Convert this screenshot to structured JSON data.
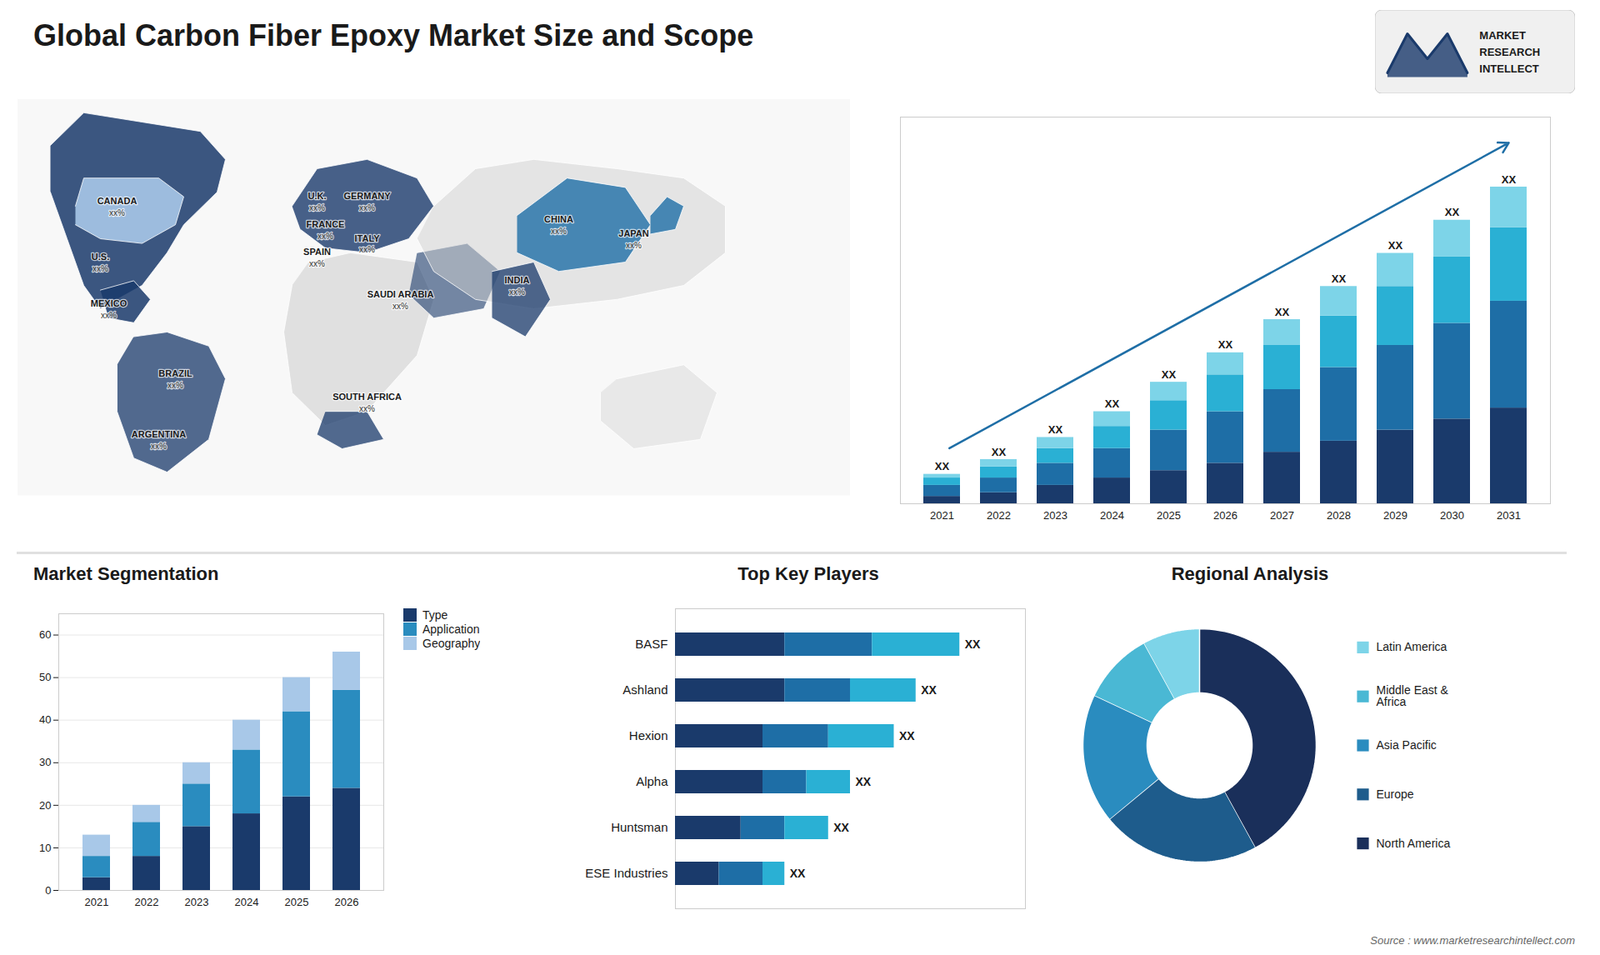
{
  "chart_data": [
    {
      "type": "map",
      "title": "Global Carbon Fiber Epoxy Market Size and Scope",
      "categories": [
        "CANADA",
        "U.S.",
        "MEXICO",
        "BRAZIL",
        "ARGENTINA",
        "U.K.",
        "FRANCE",
        "SPAIN",
        "GERMANY",
        "ITALY",
        "SAUDI ARABIA",
        "SOUTH AFRICA",
        "CHINA",
        "INDIA",
        "JAPAN"
      ],
      "value_labels": [
        "xx%",
        "xx%",
        "xx%",
        "xx%",
        "xx%",
        "xx%",
        "xx%",
        "xx%",
        "xx%",
        "xx%",
        "xx%",
        "xx%",
        "xx%",
        "xx%",
        "xx%"
      ],
      "annotations": [
        "MARKET",
        "RESEARCH",
        "INTELLECT",
        "Source : www.marketresearchintellect.com"
      ]
    },
    {
      "type": "bar",
      "stacked": true,
      "categories": [
        "2021",
        "2022",
        "2023",
        "2024",
        "2025",
        "2026",
        "2027",
        "2028",
        "2029",
        "2030",
        "2031"
      ],
      "series": [
        {
          "color": "#1a3a6b",
          "values": [
            2,
            3,
            5,
            7,
            9,
            11,
            14,
            17,
            20,
            23,
            26
          ]
        },
        {
          "color": "#1e6ea6",
          "values": [
            3,
            4,
            6,
            8,
            11,
            14,
            17,
            20,
            23,
            26,
            29
          ]
        },
        {
          "color": "#2ab0d4",
          "values": [
            2,
            3,
            4,
            6,
            8,
            10,
            12,
            14,
            16,
            18,
            20
          ]
        },
        {
          "color": "#7dd4e8",
          "values": [
            1,
            2,
            3,
            4,
            5,
            6,
            7,
            8,
            9,
            10,
            11
          ]
        }
      ],
      "value_labels": [
        "XX",
        "XX",
        "XX",
        "XX",
        "XX",
        "XX",
        "XX",
        "XX",
        "XX",
        "XX",
        "XX"
      ],
      "ylim": [
        0,
        105
      ],
      "tick_labels": "x"
    },
    {
      "type": "bar",
      "stacked": true,
      "title": "Market Segmentation",
      "categories": [
        "2021",
        "2022",
        "2023",
        "2024",
        "2025",
        "2026"
      ],
      "series": [
        {
          "name": "Type",
          "color": "#1a3a6b",
          "values": [
            3,
            8,
            15,
            18,
            22,
            24
          ]
        },
        {
          "name": "Application",
          "color": "#2a8cbf",
          "values": [
            5,
            8,
            10,
            15,
            20,
            23
          ]
        },
        {
          "name": "Geography",
          "color": "#a8c8e8",
          "values": [
            5,
            4,
            5,
            7,
            8,
            9
          ]
        }
      ],
      "ylim": [
        0,
        65
      ],
      "yticks": [
        0,
        10,
        20,
        30,
        40,
        50,
        60
      ],
      "grid": true,
      "legend": "right"
    },
    {
      "type": "bar",
      "stacked": true,
      "orientation": "horizontal",
      "title": "Top Key Players",
      "categories": [
        "BASF",
        "Ashland",
        "Hexion",
        "Alpha",
        "Huntsman",
        "ESE Industries"
      ],
      "series": [
        {
          "color": "#1a3a6b",
          "values": [
            5,
            5,
            4,
            4,
            3,
            2
          ]
        },
        {
          "color": "#1e6ea6",
          "values": [
            4,
            3,
            3,
            2,
            2,
            2
          ]
        },
        {
          "color": "#2ab0d4",
          "values": [
            4,
            3,
            3,
            2,
            2,
            1
          ]
        }
      ],
      "value_labels": [
        "XX",
        "XX",
        "XX",
        "XX",
        "XX",
        "XX"
      ],
      "xlim": [
        0,
        16
      ],
      "tick_labels": "y"
    },
    {
      "type": "pie",
      "title": "Regional Analysis",
      "categories": [
        "Latin America",
        "Middle East &\nAfrica",
        "Asia Pacific",
        "Europe",
        "North America"
      ],
      "values": [
        8,
        10,
        18,
        22,
        42
      ],
      "colors": [
        "#7dd4e8",
        "#4ab8d4",
        "#2a8cbf",
        "#1e5c8c",
        "#1a2f5a"
      ],
      "legend": "right"
    }
  ]
}
